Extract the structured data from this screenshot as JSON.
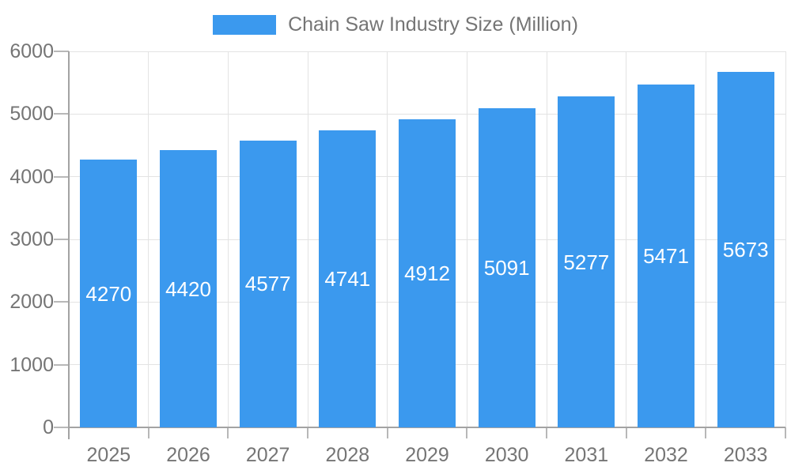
{
  "chart_data": {
    "type": "bar",
    "title": "Chain Saw Industry Size (Million)",
    "categories": [
      "2025",
      "2026",
      "2027",
      "2028",
      "2029",
      "2030",
      "2031",
      "2032",
      "2033"
    ],
    "series": [
      {
        "name": "Chain Saw Industry Size (Million)",
        "values": [
          4270,
          4420,
          4577,
          4741,
          4912,
          5091,
          5277,
          5471,
          5673
        ]
      }
    ],
    "data_labels": [
      "4270",
      "4420",
      "4577",
      "4741",
      "4912",
      "5091",
      "5277",
      "5471",
      "5673"
    ],
    "xlabel": "",
    "ylabel": "",
    "ylim": [
      0,
      6000
    ],
    "ytick_step": 1000,
    "yticks": [
      "0",
      "1000",
      "2000",
      "3000",
      "4000",
      "5000",
      "6000"
    ],
    "grid": true,
    "legend_position": "top",
    "colors": {
      "bar": "#3B99EE",
      "bar_value_text": "#ffffff",
      "axis": "#a3a3a3",
      "tick": "#b8b8b8",
      "gridline": "#e3e3e3",
      "tick_label": "#757575",
      "background": "#ffffff"
    }
  }
}
